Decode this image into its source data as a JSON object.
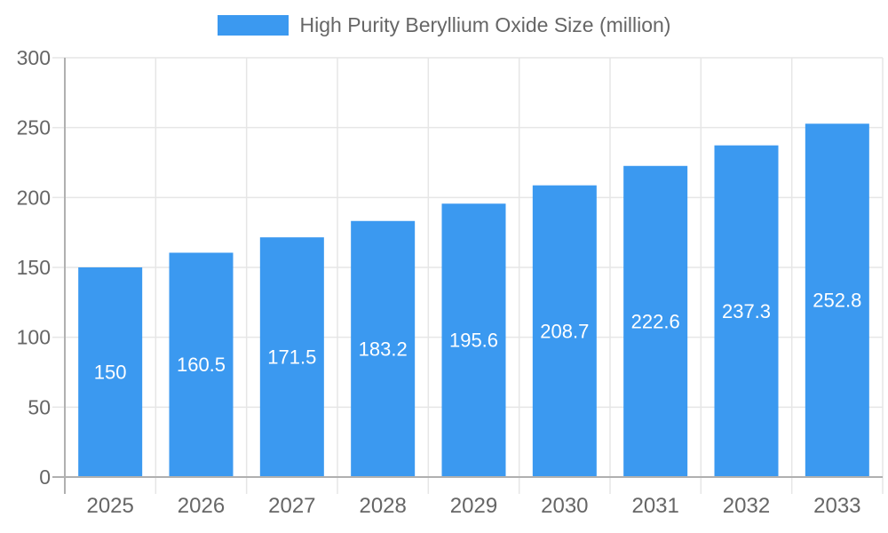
{
  "chart_data": {
    "type": "bar",
    "title": "High Purity Beryllium Oxide Size (million)",
    "legend": [
      "High Purity Beryllium Oxide Size (million)"
    ],
    "legend_position": "top",
    "categories": [
      "2025",
      "2026",
      "2027",
      "2028",
      "2029",
      "2030",
      "2031",
      "2032",
      "2033"
    ],
    "values": [
      150,
      160.5,
      171.5,
      183.2,
      195.6,
      208.7,
      222.6,
      237.3,
      252.8
    ],
    "value_labels": [
      "150",
      "160.5",
      "171.5",
      "183.2",
      "195.6",
      "208.7",
      "222.6",
      "237.3",
      "252.8"
    ],
    "xlabel": "",
    "ylabel": "",
    "ylim": [
      0,
      300
    ],
    "ytick_step": 50,
    "ytick_labels": [
      "0",
      "50",
      "100",
      "150",
      "200",
      "250",
      "300"
    ],
    "grid": true,
    "colors": {
      "bar": "#3b99f0",
      "grid": "#e6e6e6",
      "axis": "#b0b0b0",
      "text": "#666666",
      "value_text": "#ffffff",
      "background": "#ffffff"
    }
  }
}
